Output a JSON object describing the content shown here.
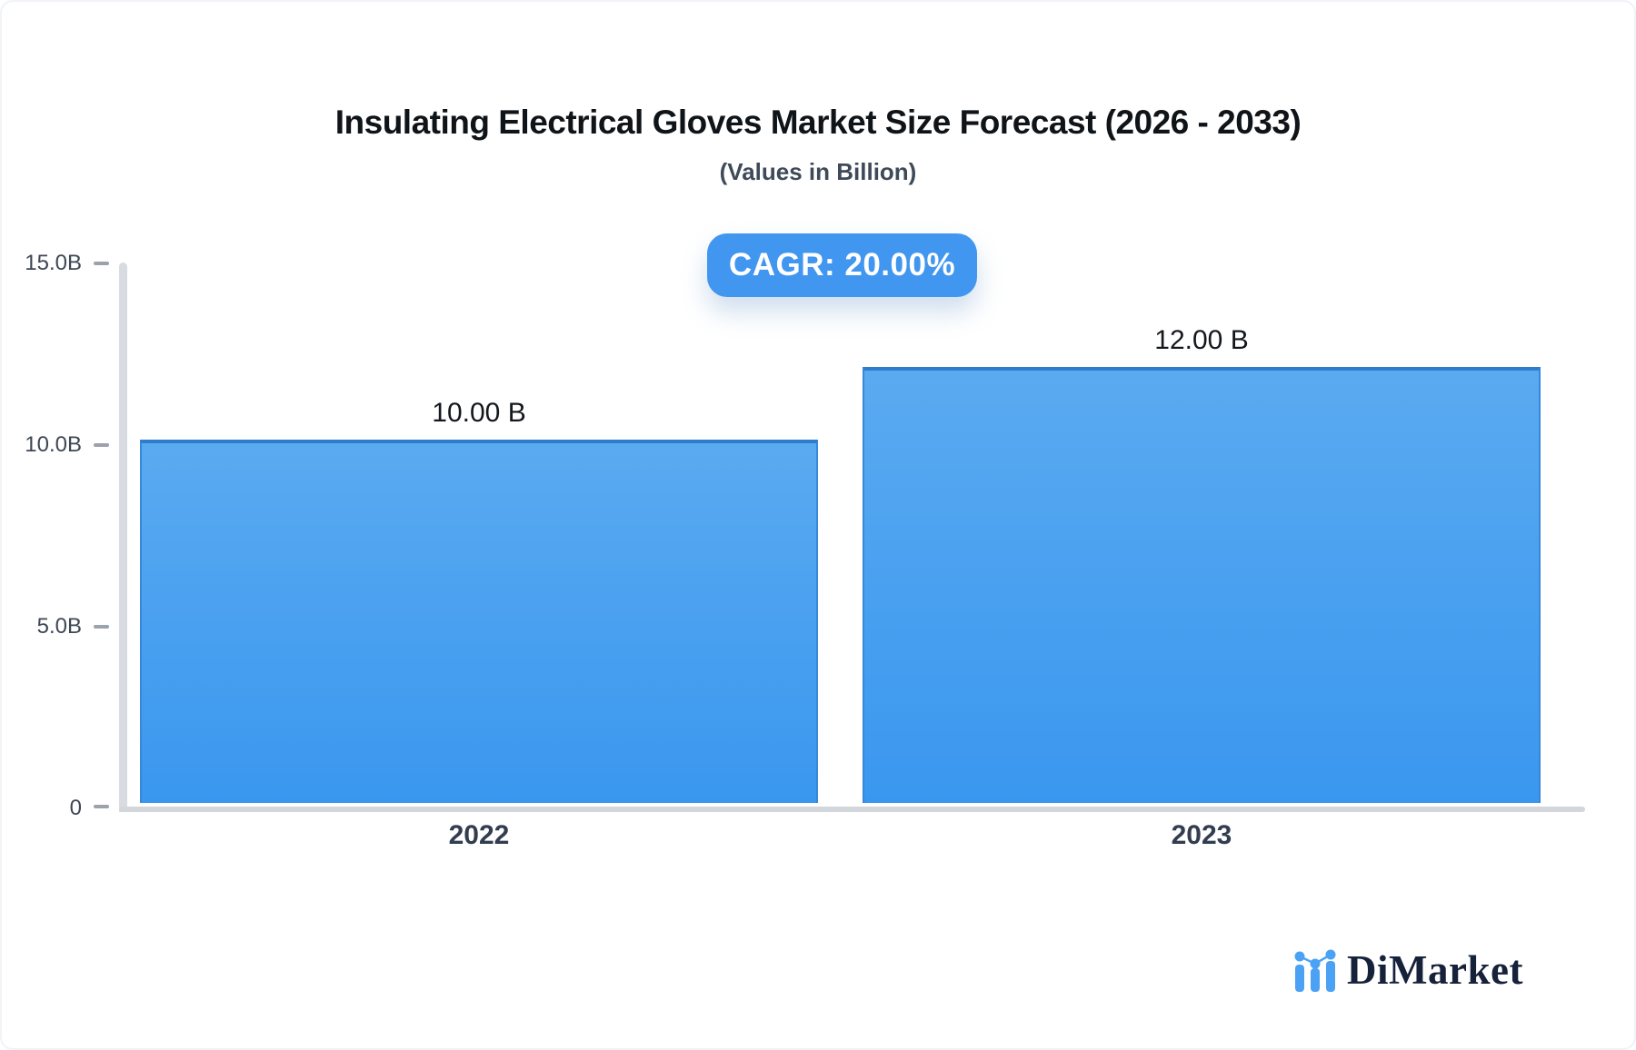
{
  "header": {
    "title": "Insulating Electrical Gloves Market Size Forecast (2026 - 2033)",
    "subtitle": "(Values in Billion)"
  },
  "badge": {
    "label": "CAGR: 20.00%",
    "background": "#4196f0",
    "text_color": "#ffffff"
  },
  "chart_data": {
    "type": "bar",
    "title": "Insulating Electrical Gloves Market Size Forecast (2026 - 2033)",
    "subtitle": "(Values in Billion)",
    "cagr": "20.00%",
    "categories": [
      "2022",
      "2023"
    ],
    "values": [
      10.0,
      12.0
    ],
    "value_labels": [
      "10.00 B",
      "12.00 B"
    ],
    "unit": "Billion",
    "ylim": [
      0,
      15
    ],
    "yticks": [
      {
        "value": 15,
        "label": "15.0B"
      },
      {
        "value": 10,
        "label": "10.0B"
      },
      {
        "value": 5,
        "label": "5.0B"
      },
      {
        "value": 0,
        "label": "0"
      }
    ],
    "grid": false,
    "legend": false,
    "colors": {
      "bar_gradient_top": "#5aaaf0",
      "bar_gradient_bottom": "#3a97ef",
      "bar_border": "#2e7dcd",
      "axis_line": "#d6d9de",
      "tick_dash": "#9aa2ac",
      "tick_label": "#3d4754",
      "category_label": "#323d4f",
      "value_label": "#14181d"
    }
  },
  "footer": {
    "brand": "DiMarket",
    "logo_icon": "bar-line-chart-icon",
    "brand_color": "#16213a",
    "icon_color": "#4ba2f5"
  }
}
